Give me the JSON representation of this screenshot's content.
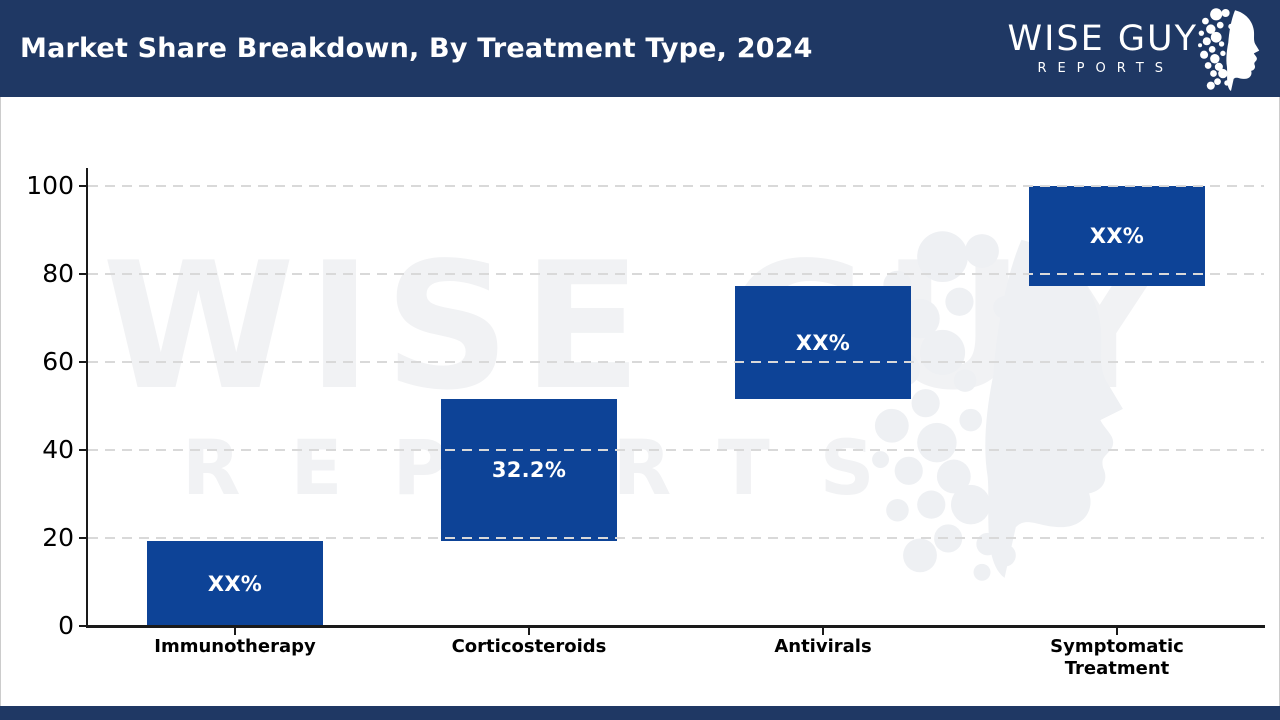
{
  "header": {
    "title": "Market Share Breakdown, By Treatment Type, 2024",
    "logo": {
      "line1": "WISE GUY",
      "line2": "REPORTS"
    }
  },
  "watermark": {
    "line1": "WISE GUY",
    "line2": "REPORTS"
  },
  "colors": {
    "header_bg": "#1f3864",
    "bar": "#0d4397",
    "gridline": "#d9d9d9",
    "watermark": "#f1f2f4",
    "axis": "#1a1a1a",
    "border": "#cccccc"
  },
  "chart_data": {
    "type": "bar",
    "variant": "waterfall-floating-segments",
    "title": "Market Share Breakdown, By Treatment Type, 2024",
    "categories": [
      "Immunotherapy",
      "Corticosteroids",
      "Antivirals",
      "Symptomatic Treatment"
    ],
    "bases": [
      0,
      19.3,
      51.5,
      77.2
    ],
    "values": [
      19.3,
      32.2,
      25.7,
      22.8
    ],
    "labels": [
      "XX%",
      "32.2%",
      "XX%",
      "XX%"
    ],
    "yticks": [
      0,
      20,
      40,
      60,
      80,
      100
    ],
    "ylim": [
      0,
      104
    ],
    "xlabel": "",
    "ylabel": "",
    "grid": "horizontal-dashed",
    "legend": "none",
    "bar_color": "#0d4397"
  }
}
